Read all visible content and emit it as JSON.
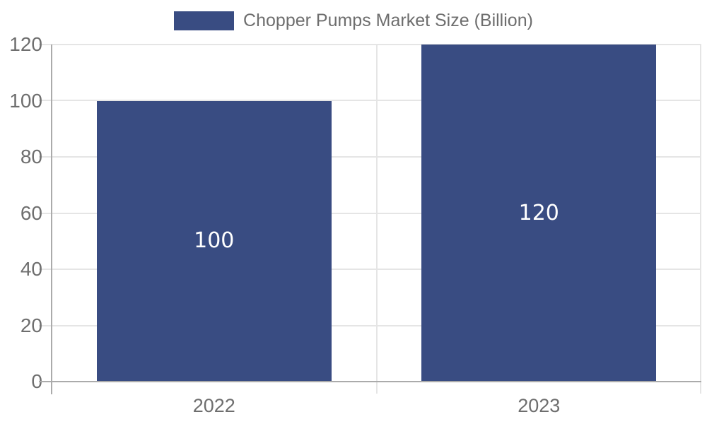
{
  "legend": {
    "label": "Chopper Pumps Market Size (Billion)"
  },
  "chart_data": {
    "type": "bar",
    "title": "Chopper Pumps Market Size (Billion)",
    "categories": [
      "2022",
      "2023"
    ],
    "series": [
      {
        "name": "Chopper Pumps Market Size (Billion)",
        "values": [
          100,
          120
        ],
        "color": "#394C82"
      }
    ],
    "value_labels": {
      "show": true,
      "position": "inside-center",
      "color": "#ffffff",
      "texts": [
        "100",
        "120"
      ]
    },
    "xlabel": "",
    "ylabel": "",
    "ylim": [
      0,
      120
    ],
    "yticks": [
      0,
      20,
      40,
      60,
      80,
      100,
      120
    ],
    "grid": "horizontal-light, vertical-category-boundaries",
    "legend_position": "top-center",
    "colors": {
      "bar": "#394C82",
      "axis_line": "#ababab",
      "gridline": "#e5e5e5",
      "tick_text": "#6e6e6e",
      "value_text": "#ffffff",
      "background": "#ffffff"
    }
  }
}
